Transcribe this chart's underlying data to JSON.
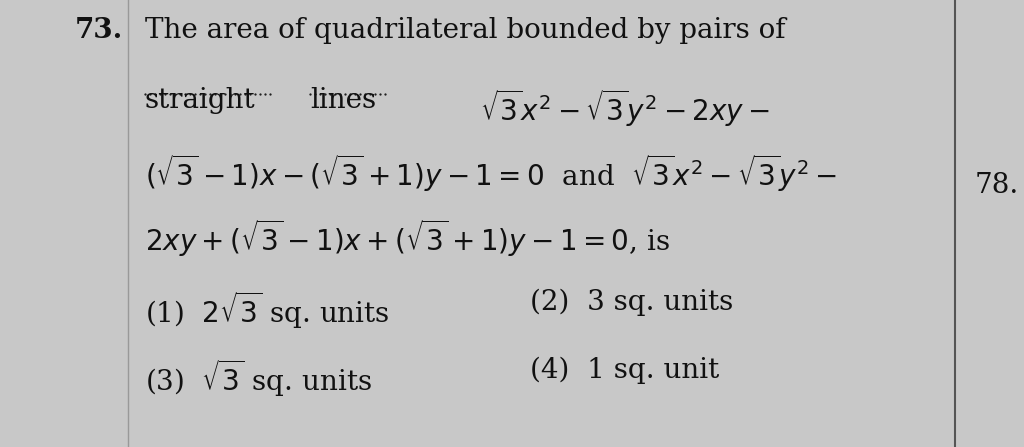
{
  "bg_color": "#c8c8c8",
  "text_color": "#111111",
  "question_number": "73.",
  "right_number": "78.",
  "line1": "The area of quadrilateral bounded by pairs of",
  "font_size_q": 20,
  "font_size_main": 20,
  "font_size_opts": 20
}
